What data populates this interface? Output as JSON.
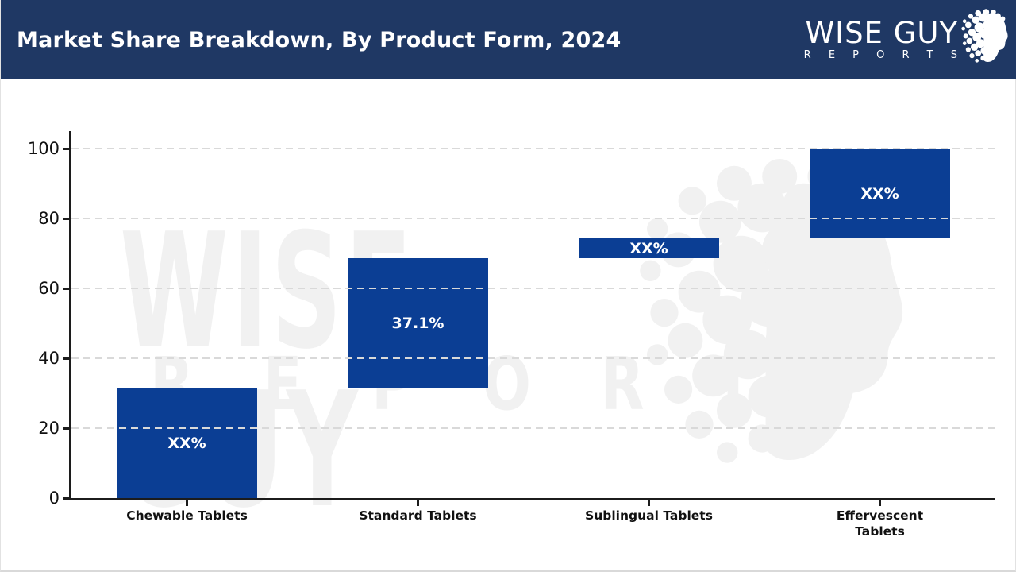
{
  "header": {
    "title": "Market Share Breakdown, By Product Form, 2024",
    "logo": {
      "line1": "WISE GUY",
      "line2": "R E P O R T S"
    }
  },
  "watermark": {
    "line1": "WISE GUY",
    "line2": "R E P O R T S"
  },
  "colors": {
    "header_bg": "#1f3864",
    "bar": "#0b3e94",
    "bar_label": "#ffffff",
    "axis": "#1c1c1c",
    "gridline": "#d9d9d9",
    "watermark": "#f1f1f1"
  },
  "chart_data": {
    "type": "bar",
    "subtype": "waterfall",
    "title": "Market Share Breakdown, By Product Form, 2024",
    "xlabel": "",
    "ylabel": "",
    "ylim": [
      0,
      105
    ],
    "yticks": [
      0,
      20,
      40,
      60,
      80,
      100
    ],
    "grid": "horizontal-dashed",
    "legend": "none",
    "categories": [
      "Chewable Tablets",
      "Standard Tablets",
      "Sublingual Tablets",
      "Effervescent Tablets"
    ],
    "bars": [
      {
        "category": "Chewable Tablets",
        "start": 0,
        "end": 31.5,
        "value": 31.5,
        "label": "XX%"
      },
      {
        "category": "Standard Tablets",
        "start": 31.5,
        "end": 68.6,
        "value": 37.1,
        "label": "37.1%"
      },
      {
        "category": "Sublingual Tablets",
        "start": 68.6,
        "end": 74.3,
        "value": 5.7,
        "label": "XX%"
      },
      {
        "category": "Effervescent\nTablets",
        "start": 74.3,
        "end": 100,
        "value": 25.7,
        "label": "XX%"
      }
    ]
  }
}
